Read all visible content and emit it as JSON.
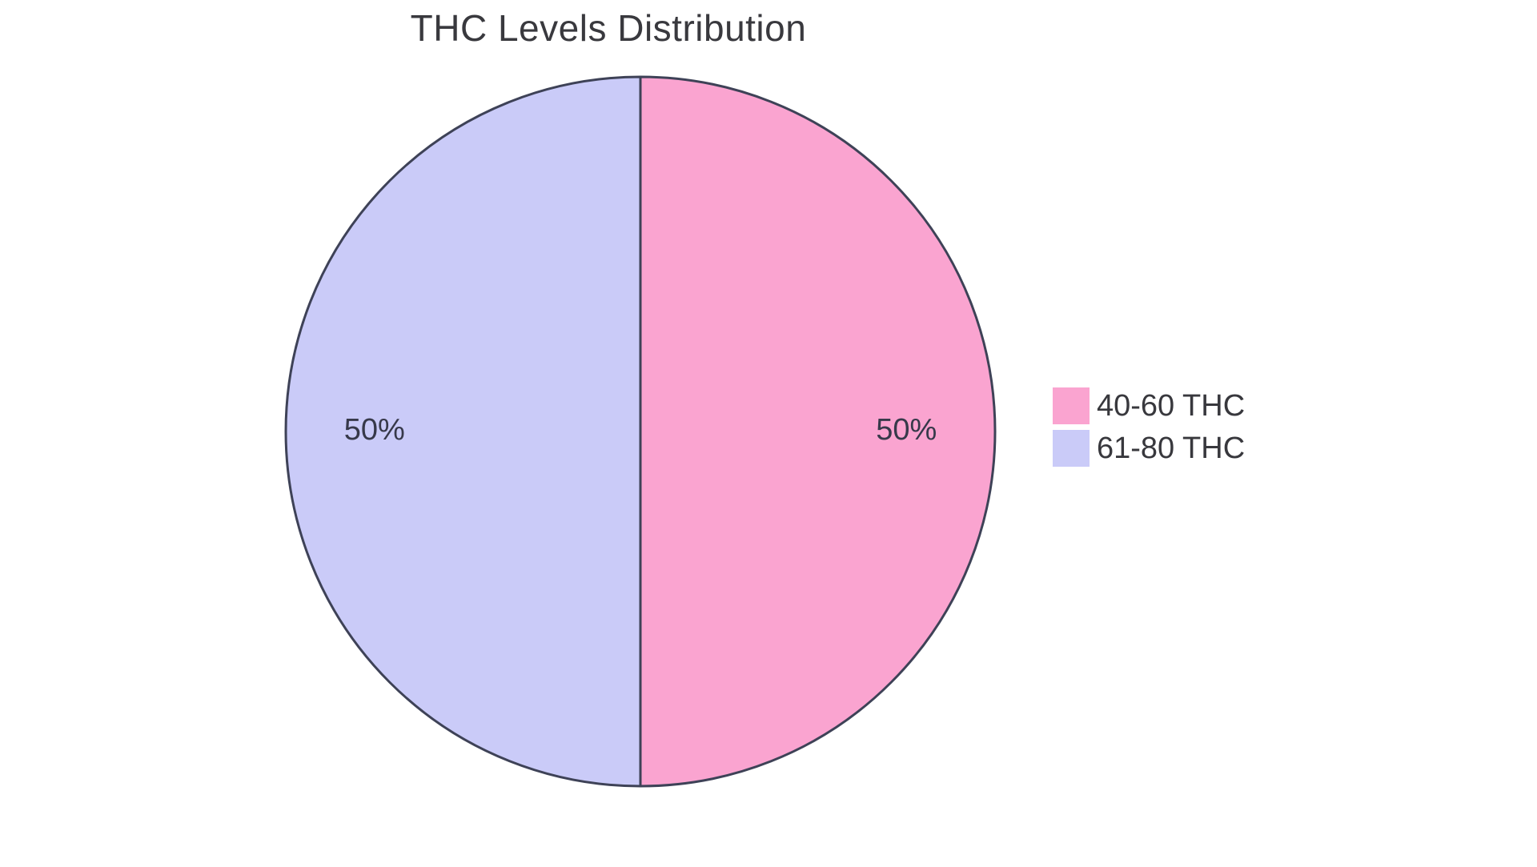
{
  "chart_data": {
    "type": "pie",
    "title": "THC Levels Distribution",
    "categories": [
      "40-60 THC",
      "61-80 THC"
    ],
    "values": [
      50,
      50
    ],
    "slice_labels": [
      "50%",
      "50%"
    ],
    "colors": [
      "#FAA4D0",
      "#CACBF8"
    ],
    "stroke_color": "#3E4257",
    "stroke_width": 3,
    "label_color": "#37394A",
    "title_color": "#39393E",
    "legend_text_color": "#38383D",
    "legend_position": "right",
    "start_angle": "top",
    "direction": "clockwise",
    "label_radius_fraction": 0.75
  },
  "legend": {
    "items": [
      {
        "label": "40-60 THC",
        "color": "#FAA4D0"
      },
      {
        "label": "61-80 THC",
        "color": "#CACBF8"
      }
    ]
  }
}
